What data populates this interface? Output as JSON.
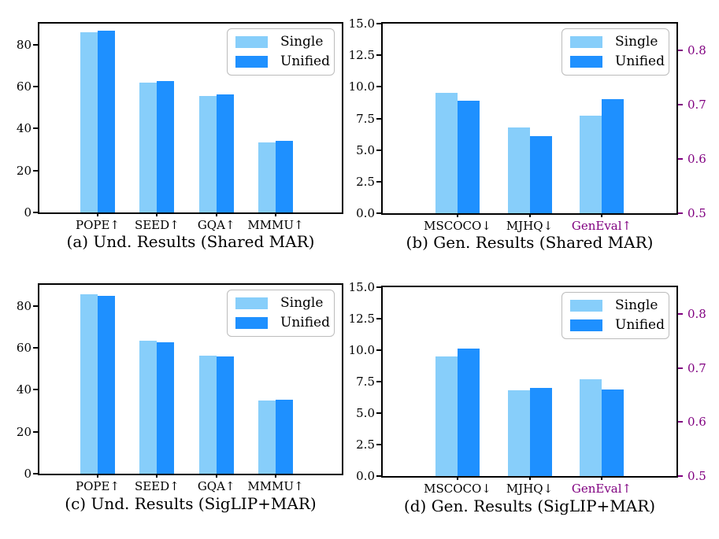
{
  "colors": {
    "single_blue": "#87CEFA",
    "unified_blue": "#1E90FF",
    "purple": "#800080",
    "spine": "#000000",
    "legend_border": "#bcbcbc"
  },
  "legend": {
    "items": [
      {
        "label": "Single",
        "color": "#87CEFA"
      },
      {
        "label": "Unified",
        "color": "#1E90FF"
      }
    ],
    "position": "top-right"
  },
  "chart_data": [
    {
      "id": "a",
      "type": "bar",
      "caption": "(a) Und. Results (Shared MAR)",
      "categories": [
        "POPE↑",
        "SEED↑",
        "GQA↑",
        "MMMU↑"
      ],
      "xtick_colors": [
        "#000000",
        "#000000",
        "#000000",
        "#000000"
      ],
      "axis_map": [
        "y",
        "y",
        "y",
        "y"
      ],
      "series": [
        {
          "name": "Single",
          "values": [
            86.0,
            62.0,
            55.5,
            33.3
          ]
        },
        {
          "name": "Unified",
          "values": [
            86.5,
            62.5,
            56.2,
            34.0
          ]
        }
      ],
      "ylim": [
        0,
        90
      ],
      "yticks": [
        0,
        20,
        40,
        60,
        80
      ],
      "ytick_labels": [
        "0",
        "20",
        "40",
        "60",
        "80"
      ],
      "grid": false,
      "legend_position": "top-right"
    },
    {
      "id": "b",
      "type": "bar",
      "caption": "(b) Gen. Results (Shared MAR)",
      "categories": [
        "MSCOCO↓",
        "MJHQ↓",
        "GenEval↑"
      ],
      "xtick_colors": [
        "#000000",
        "#000000",
        "#800080"
      ],
      "axis_map": [
        "y",
        "y",
        "y2"
      ],
      "series": [
        {
          "name": "Single",
          "values": [
            9.5,
            6.8,
            0.68
          ]
        },
        {
          "name": "Unified",
          "values": [
            8.9,
            6.1,
            0.71
          ]
        }
      ],
      "ylim": [
        0,
        15
      ],
      "yticks": [
        0,
        2.5,
        5,
        7.5,
        10,
        12.5,
        15
      ],
      "ytick_labels": [
        "0.0",
        "2.5",
        "5.0",
        "7.5",
        "10.0",
        "12.5",
        "15.0"
      ],
      "y2lim": [
        0.5,
        0.85
      ],
      "y2ticks": [
        0.5,
        0.6,
        0.7,
        0.8
      ],
      "y2tick_labels": [
        "0.5",
        "0.6",
        "0.7",
        "0.8"
      ],
      "grid": false,
      "legend_position": "top-right"
    },
    {
      "id": "c",
      "type": "bar",
      "caption": "(c) Und. Results (SigLIP+MAR)",
      "categories": [
        "POPE↑",
        "SEED↑",
        "GQA↑",
        "MMMU↑"
      ],
      "xtick_colors": [
        "#000000",
        "#000000",
        "#000000",
        "#000000"
      ],
      "axis_map": [
        "y",
        "y",
        "y",
        "y"
      ],
      "series": [
        {
          "name": "Single",
          "values": [
            85.4,
            63.2,
            56.1,
            34.8
          ]
        },
        {
          "name": "Unified",
          "values": [
            84.9,
            62.5,
            55.7,
            35.1
          ]
        }
      ],
      "ylim": [
        0,
        90
      ],
      "yticks": [
        0,
        20,
        40,
        60,
        80
      ],
      "ytick_labels": [
        "0",
        "20",
        "40",
        "60",
        "80"
      ],
      "grid": false,
      "legend_position": "top-right"
    },
    {
      "id": "d",
      "type": "bar",
      "caption": "(d) Gen. Results (SigLIP+MAR)",
      "categories": [
        "MSCOCO↓",
        "MJHQ↓",
        "GenEval↑"
      ],
      "xtick_colors": [
        "#000000",
        "#000000",
        "#800080"
      ],
      "axis_map": [
        "y",
        "y",
        "y2"
      ],
      "series": [
        {
          "name": "Single",
          "values": [
            9.5,
            6.8,
            0.68
          ]
        },
        {
          "name": "Unified",
          "values": [
            10.1,
            7.0,
            0.66
          ]
        }
      ],
      "ylim": [
        0,
        15
      ],
      "yticks": [
        0,
        2.5,
        5,
        7.5,
        10,
        12.5,
        15
      ],
      "ytick_labels": [
        "0.0",
        "2.5",
        "5.0",
        "7.5",
        "10.0",
        "12.5",
        "15.0"
      ],
      "y2lim": [
        0.5,
        0.85
      ],
      "y2ticks": [
        0.5,
        0.6,
        0.7,
        0.8
      ],
      "y2tick_labels": [
        "0.5",
        "0.6",
        "0.7",
        "0.8"
      ],
      "grid": false,
      "legend_position": "top-right"
    }
  ]
}
